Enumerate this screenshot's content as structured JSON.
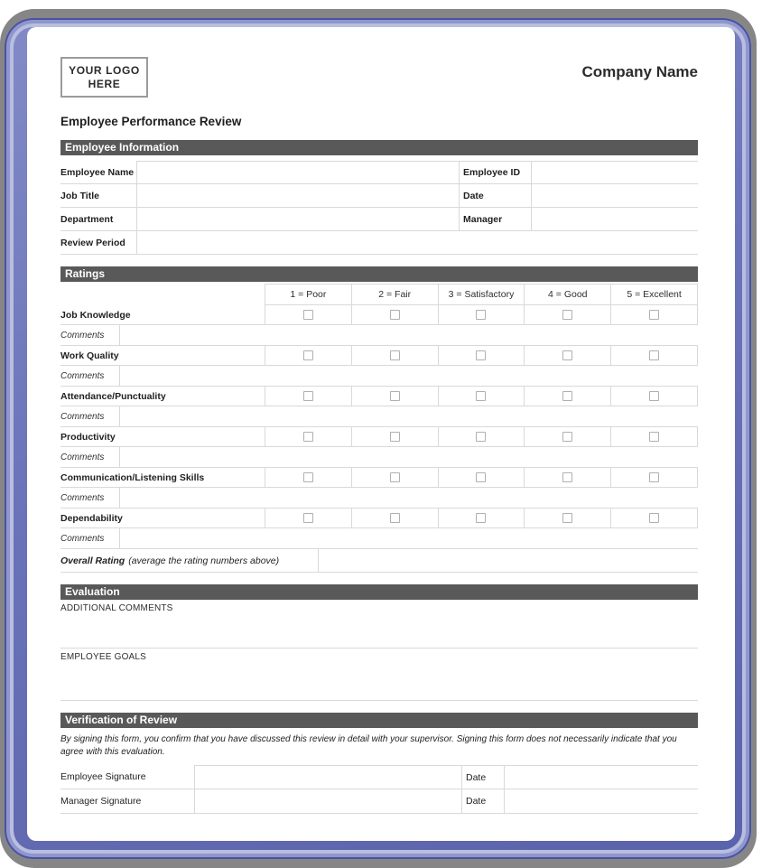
{
  "header": {
    "logo_line1": "YOUR LOGO",
    "logo_line2": "HERE",
    "company_name": "Company Name",
    "form_title": "Employee Performance Review"
  },
  "employee_information": {
    "section_title": "Employee Information",
    "left_fields": [
      "Employee Name",
      "Job Title",
      "Department",
      "Review Period"
    ],
    "right_fields": [
      "Employee ID",
      "Date",
      "Manager"
    ]
  },
  "ratings": {
    "section_title": "Ratings",
    "scale_headers": [
      "1 = Poor",
      "2 = Fair",
      "3 = Satisfactory",
      "4 = Good",
      "5 = Excellent"
    ],
    "criteria": [
      "Job Knowledge",
      "Work Quality",
      "Attendance/Punctuality",
      "Productivity",
      "Communication/Listening Skills",
      "Dependability"
    ],
    "comments_label": "Comments",
    "overall_rating_label": "Overall Rating",
    "overall_rating_note": "(average the rating numbers above)"
  },
  "evaluation": {
    "section_title": "Evaluation",
    "additional_comments_label": "ADDITIONAL COMMENTS",
    "employee_goals_label": "EMPLOYEE GOALS"
  },
  "verification": {
    "section_title": "Verification of Review",
    "disclaimer": "By signing this form, you confirm that you have discussed this review in detail with your supervisor. Signing this form does not necessarily indicate that you agree with this evaluation.",
    "rows": [
      {
        "label": "Employee Signature",
        "date_label": "Date"
      },
      {
        "label": "Manager Signature",
        "date_label": "Date"
      }
    ]
  },
  "colors": {
    "section_bar": "#595959",
    "frame_purple": "#6a73b9",
    "frame_shadow_gray": "#868686",
    "table_border": "#d9d9d9"
  }
}
